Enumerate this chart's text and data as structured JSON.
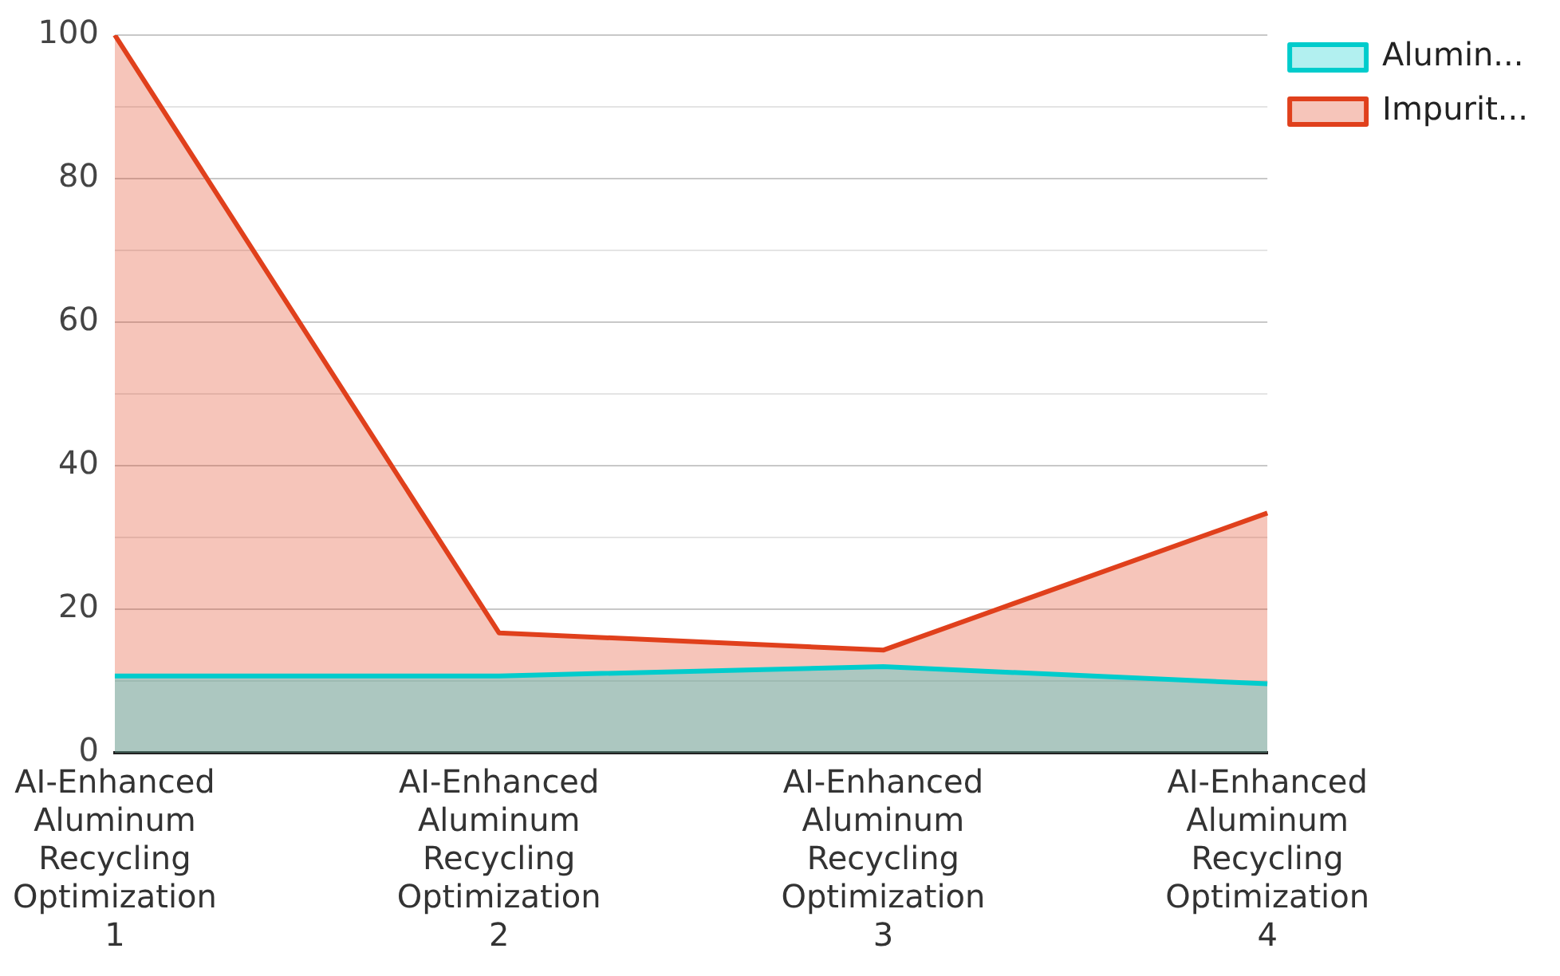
{
  "chart_data": {
    "type": "area",
    "categories": [
      "AI-Enhanced Aluminum Recycling Optimization 1",
      "AI-Enhanced Aluminum Recycling Optimization 2",
      "AI-Enhanced Aluminum Recycling Optimization 3",
      "AI-Enhanced Aluminum Recycling Optimization 4"
    ],
    "series": [
      {
        "name": "Alumin...",
        "color": "#00cccc",
        "values": [
          10.7,
          10.7,
          12,
          9.6
        ]
      },
      {
        "name": "Impurit...",
        "color": "#e0401c",
        "values": [
          100,
          16.7,
          14.3,
          33.4
        ]
      }
    ],
    "ylim": [
      0,
      100
    ],
    "yticks": [
      0,
      {
        "value": 10,
        "label": null
      },
      20,
      {
        "value": 30,
        "label": null
      },
      40,
      {
        "value": 50,
        "label": null
      },
      60,
      {
        "value": 70,
        "label": null
      },
      80,
      {
        "value": 90,
        "label": null
      },
      100
    ],
    "grid": "y",
    "legend": "top right",
    "marker": "none"
  }
}
